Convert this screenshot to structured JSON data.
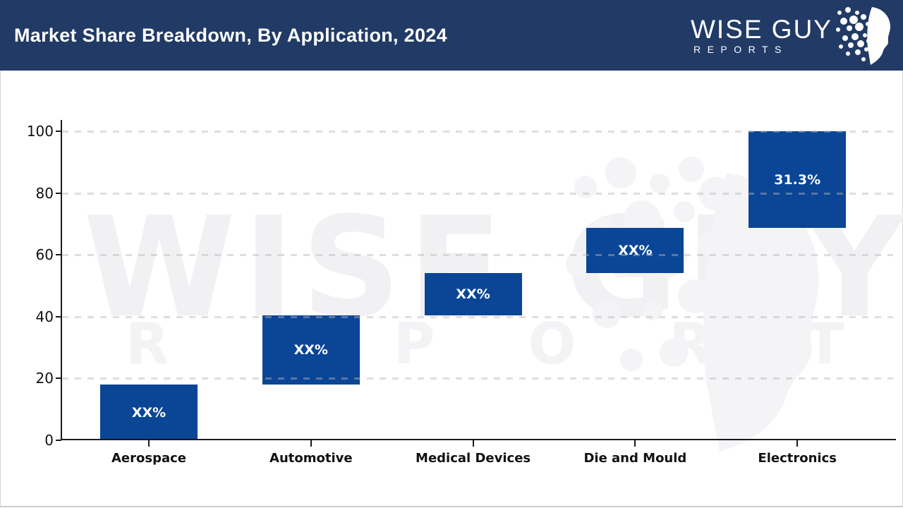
{
  "header": {
    "title": "Market Share Breakdown, By Application, 2024",
    "bg_color": "#213a66",
    "logo": {
      "line1": "WISE GUY",
      "line2": "REPORTS"
    }
  },
  "watermark": {
    "line1": "WISE GUY",
    "line2": "R E P O R T S"
  },
  "chart_data": {
    "type": "bar",
    "subtype": "waterfall",
    "title": "Market Share Breakdown, By Application, 2024",
    "categories": [
      "Aerospace",
      "Automotive",
      "Medical Devices",
      "Die and Mould",
      "Electronics"
    ],
    "segments": [
      {
        "category": "Aerospace",
        "start": 0,
        "end": 18,
        "label": "XX%"
      },
      {
        "category": "Automotive",
        "start": 18,
        "end": 40.5,
        "label": "XX%"
      },
      {
        "category": "Medical Devices",
        "start": 40.5,
        "end": 54,
        "label": "XX%"
      },
      {
        "category": "Die and Mould",
        "start": 54,
        "end": 68.7,
        "label": "XX%"
      },
      {
        "category": "Electronics",
        "start": 68.7,
        "end": 100,
        "label": "31.3%"
      }
    ],
    "y_ticks": [
      0,
      20,
      40,
      60,
      80,
      100
    ],
    "ylim": [
      0,
      100
    ],
    "grid": "dashed-horizontal",
    "legend": "none",
    "xlabel": "",
    "ylabel": "",
    "bar_color": "#0a4596",
    "bar_label_color": "#ffffff",
    "axis_color": "#1a1a1a",
    "tick_label_color": "#111111"
  }
}
